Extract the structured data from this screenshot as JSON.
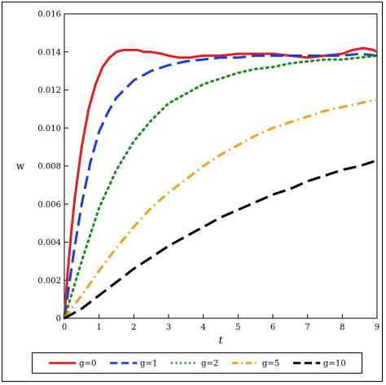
{
  "chart_data": {
    "type": "line",
    "xlabel": "t",
    "ylabel": "w",
    "xlim": [
      0,
      9
    ],
    "ylim": [
      0,
      0.016
    ],
    "xticks": [
      "0",
      "1",
      "2",
      "3",
      "4",
      "5",
      "6",
      "7",
      "8",
      "9"
    ],
    "yticks": [
      "0",
      "0.002",
      "0.004",
      "0.006",
      "0.008",
      "0.010",
      "0.012",
      "0.014",
      "0.016"
    ],
    "grid": false,
    "legend_position": "bottom",
    "series": [
      {
        "name": "g=0",
        "color": "#e02020",
        "dash": "solid",
        "x": [
          0,
          0.1,
          0.2,
          0.3,
          0.5,
          0.7,
          0.9,
          1.1,
          1.3,
          1.5,
          1.7,
          1.9,
          2.1,
          2.3,
          2.5,
          2.8,
          3.0,
          3.3,
          3.6,
          4.0,
          4.5,
          5.0,
          5.5,
          6.0,
          6.5,
          7.0,
          7.5,
          8.0,
          8.3,
          8.6,
          8.9,
          9.0
        ],
        "y": [
          0,
          0.0025,
          0.0045,
          0.0063,
          0.009,
          0.011,
          0.0123,
          0.0132,
          0.0137,
          0.014,
          0.0141,
          0.0141,
          0.0141,
          0.014,
          0.014,
          0.0139,
          0.0138,
          0.0137,
          0.0137,
          0.0138,
          0.0138,
          0.0139,
          0.0139,
          0.0139,
          0.0138,
          0.0137,
          0.0138,
          0.0139,
          0.0141,
          0.0142,
          0.0141,
          0.014
        ]
      },
      {
        "name": "g=1",
        "color": "#1f3fd0",
        "dash": "long-dash",
        "x": [
          0,
          0.25,
          0.5,
          0.75,
          1.0,
          1.25,
          1.5,
          2.0,
          2.5,
          3.0,
          3.5,
          4.0,
          4.5,
          5.0,
          5.5,
          6.0,
          6.5,
          7.0,
          7.5,
          8.0,
          8.5,
          9.0
        ],
        "y": [
          0,
          0.0032,
          0.006,
          0.0082,
          0.0098,
          0.0108,
          0.0116,
          0.0125,
          0.013,
          0.0133,
          0.0135,
          0.0136,
          0.0137,
          0.0137,
          0.0138,
          0.0138,
          0.0138,
          0.0138,
          0.0138,
          0.0138,
          0.0139,
          0.0138
        ]
      },
      {
        "name": "g=2",
        "color": "#1a8a1a",
        "dash": "dot",
        "x": [
          0,
          0.5,
          1.0,
          1.5,
          2.0,
          2.5,
          3.0,
          3.5,
          4.0,
          4.5,
          5.0,
          5.5,
          6.0,
          6.5,
          7.0,
          7.5,
          8.0,
          8.5,
          9.0
        ],
        "y": [
          0,
          0.003,
          0.0058,
          0.0078,
          0.0093,
          0.0104,
          0.0113,
          0.0118,
          0.0123,
          0.0126,
          0.0129,
          0.0131,
          0.0132,
          0.0134,
          0.0135,
          0.0136,
          0.0136,
          0.0137,
          0.0138
        ]
      },
      {
        "name": "g=5",
        "color": "#f0a020",
        "dash": "dash-dot",
        "x": [
          0,
          0.5,
          1.0,
          1.5,
          2.0,
          2.5,
          3.0,
          3.5,
          4.0,
          4.5,
          5.0,
          5.5,
          6.0,
          6.5,
          7.0,
          7.5,
          8.0,
          8.5,
          9.0
        ],
        "y": [
          0,
          0.0012,
          0.0025,
          0.0037,
          0.0048,
          0.0058,
          0.0066,
          0.0073,
          0.008,
          0.0086,
          0.0091,
          0.0096,
          0.01,
          0.0103,
          0.0106,
          0.0109,
          0.0111,
          0.0113,
          0.0115
        ]
      },
      {
        "name": "g=10",
        "color": "#000000",
        "dash": "long-dash",
        "x": [
          0,
          0.5,
          1.0,
          1.5,
          2.0,
          2.5,
          3.0,
          3.5,
          4.0,
          4.5,
          5.0,
          5.5,
          6.0,
          6.5,
          7.0,
          7.5,
          8.0,
          8.5,
          9.0
        ],
        "y": [
          0,
          0.0005,
          0.0012,
          0.0019,
          0.0026,
          0.0032,
          0.0038,
          0.0043,
          0.0048,
          0.0053,
          0.0057,
          0.0061,
          0.0065,
          0.0068,
          0.0072,
          0.0075,
          0.0078,
          0.008,
          0.0083
        ]
      }
    ]
  }
}
